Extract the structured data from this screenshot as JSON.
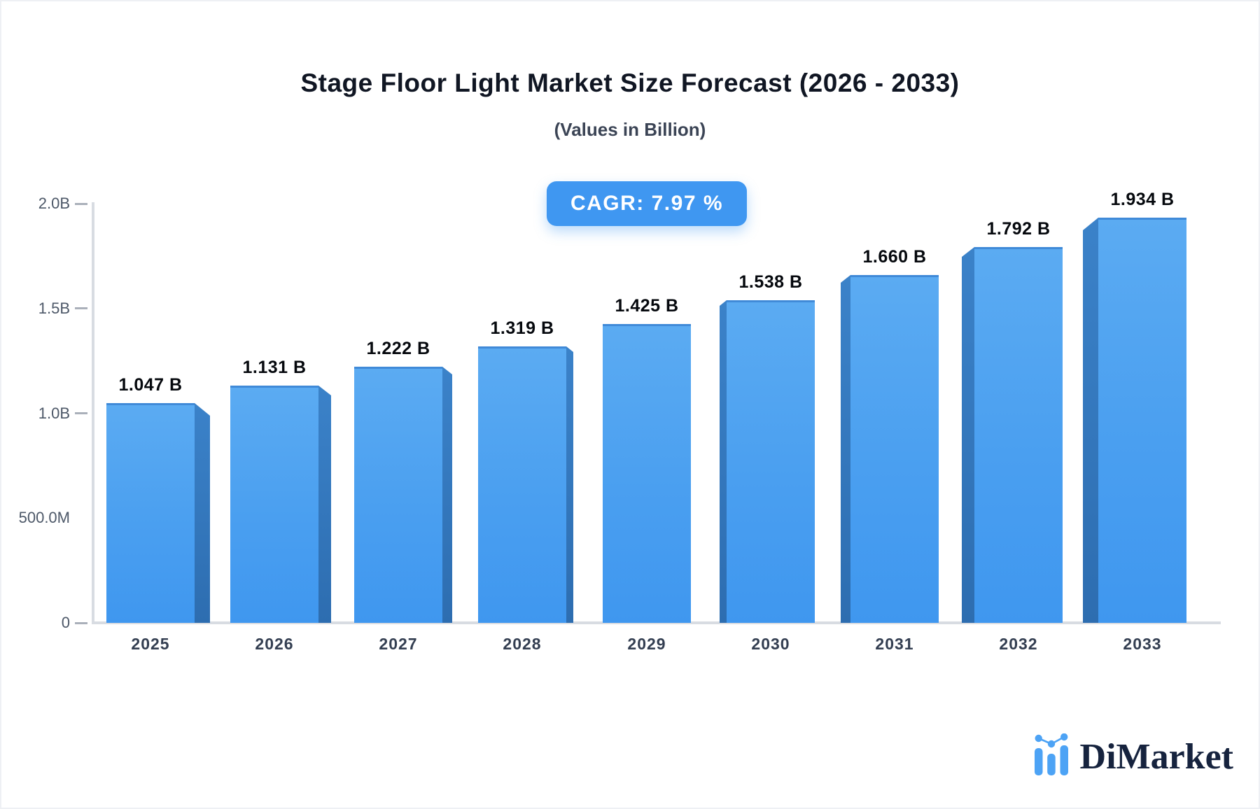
{
  "header": {
    "title": "Stage Floor Light Market Size Forecast (2026 - 2033)",
    "subtitle": "(Values in Billion)",
    "cagr_badge": "CAGR: 7.97 %"
  },
  "chart_data": {
    "type": "bar",
    "title": "Stage Floor Light Market Size Forecast (2026 - 2033)",
    "subtitle": "(Values in Billion)",
    "categories": [
      "2025",
      "2026",
      "2027",
      "2028",
      "2029",
      "2030",
      "2031",
      "2032",
      "2033"
    ],
    "values": [
      1.047,
      1.131,
      1.222,
      1.319,
      1.425,
      1.538,
      1.66,
      1.792,
      1.934
    ],
    "value_labels": [
      "1.047 B",
      "1.131 B",
      "1.222 B",
      "1.319 B",
      "1.425 B",
      "1.538 B",
      "1.660 B",
      "1.792 B",
      "1.934 B"
    ],
    "cagr": "CAGR: 7.97 %",
    "ylim": [
      0,
      2.0
    ],
    "yticks": [
      {
        "label": "2.0B",
        "value": 2.0,
        "dash": true
      },
      {
        "label": "1.5B",
        "value": 1.5,
        "dash": true
      },
      {
        "label": "1.0B",
        "value": 1.0,
        "dash": true
      },
      {
        "label": "500.0M",
        "value": 0.5,
        "dash": false
      },
      {
        "label": "0",
        "value": 0,
        "dash": true
      }
    ],
    "grid": false,
    "legend_position": "none",
    "style": "3d-perspective-bars",
    "colors": {
      "bar_face_top": "#5BABF2",
      "bar_face_bottom": "#3F97EF",
      "bar_top_bevel": "#408AD8",
      "bar_side_top": "#3B82C9",
      "bar_side_bottom": "#2D6DB0",
      "badge_background": "#3F97F1",
      "axis": "#D8DCE2"
    }
  },
  "footer": {
    "logo_text": "DiMarket",
    "logo_icon": "bar-chart-trend-icon",
    "logo_icon_color": "#4DA3F5",
    "logo_text_color": "#16233E"
  }
}
